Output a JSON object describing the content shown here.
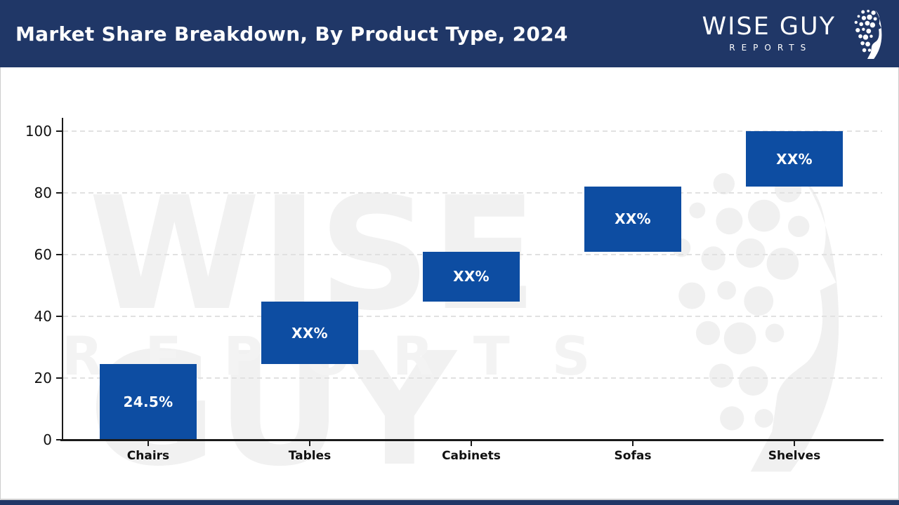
{
  "header": {
    "title": "Market Share Breakdown, By Product Type, 2024",
    "logo": {
      "name": "WISE GUY",
      "sub": "REPORTS"
    }
  },
  "watermark": {
    "name": "WISE GUY",
    "sub": "REPORTS"
  },
  "chart_data": {
    "type": "bar",
    "subtype": "waterfall",
    "title": "Market Share Breakdown, By Product Type, 2024",
    "categories": [
      "Chairs",
      "Tables",
      "Cabinets",
      "Sofas",
      "Shelves"
    ],
    "values": [
      24.5,
      20.2,
      16.3,
      21,
      18
    ],
    "segments": [
      {
        "category": "Chairs",
        "start": 0,
        "end": 24.5,
        "label": "24.5%"
      },
      {
        "category": "Tables",
        "start": 24.5,
        "end": 44.7,
        "label": "XX%"
      },
      {
        "category": "Cabinets",
        "start": 44.7,
        "end": 61,
        "label": "XX%"
      },
      {
        "category": "Sofas",
        "start": 61,
        "end": 82,
        "label": "XX%"
      },
      {
        "category": "Shelves",
        "start": 82,
        "end": 100,
        "label": "XX%"
      }
    ],
    "bar_labels": [
      "24.5%",
      "XX%",
      "XX%",
      "XX%",
      "XX%"
    ],
    "yticks": [
      0,
      20,
      40,
      60,
      80,
      100
    ],
    "ylim": [
      0,
      105
    ],
    "xlabel": "",
    "ylabel": "",
    "grid": "horizontal-dashed",
    "legend": "none"
  },
  "colors": {
    "header_bg": "#203767",
    "footer_bg": "#203767",
    "bar": "#0d4da2",
    "bar_label": "#ffffff",
    "grid": "#e1e1e1",
    "axis": "#1a1a1a",
    "watermark": "#f1f1f1"
  }
}
